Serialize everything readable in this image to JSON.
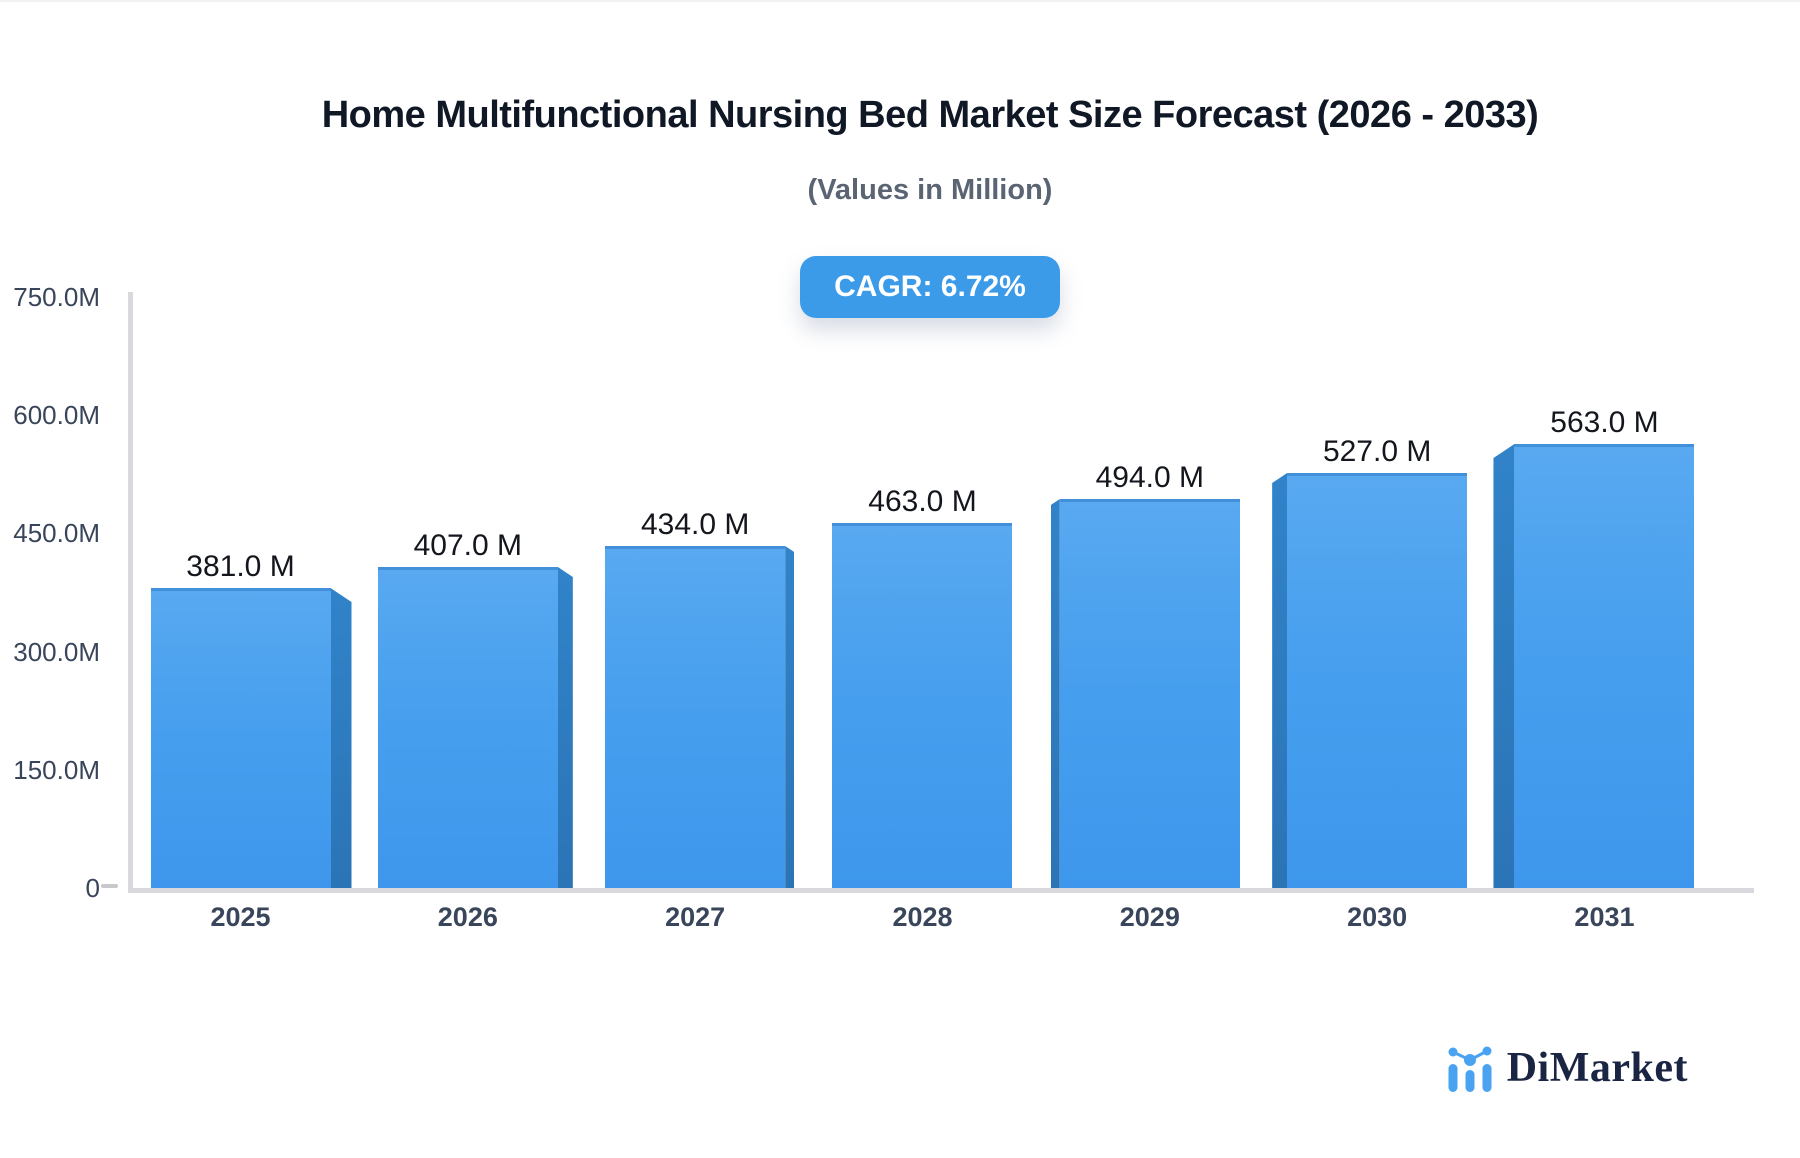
{
  "title": "Home Multifunctional Nursing Bed Market Size Forecast (2026 - 2033)",
  "subtitle": "(Values in Million)",
  "cagr": {
    "text": "CAGR: 6.72%",
    "background": "#3b9be9"
  },
  "brand": {
    "name": "DiMarket",
    "icon": "mini-bar-chart-icon",
    "icon_color": "#4aa3f0",
    "text_color": "#1a2443"
  },
  "chart_data": {
    "type": "bar",
    "title": "Home Multifunctional Nursing Bed Market Size Forecast (2026 - 2033)",
    "subtitle": "(Values in Million)",
    "unit": "Million",
    "categories": [
      "2025",
      "2026",
      "2027",
      "2028",
      "2029",
      "2030",
      "2031"
    ],
    "values": [
      381.0,
      407.0,
      434.0,
      463.0,
      494.0,
      527.0,
      563.0
    ],
    "value_labels": [
      "381.0 M",
      "407.0 M",
      "434.0 M",
      "463.0 M",
      "494.0 M",
      "527.0 M",
      "563.0 M"
    ],
    "y_ticks": [
      {
        "value": 750,
        "label": "750.0M"
      },
      {
        "value": 600,
        "label": "600.0M"
      },
      {
        "value": 450,
        "label": "450.0M"
      },
      {
        "value": 300,
        "label": "300.0M"
      },
      {
        "value": 150,
        "label": "150.0M"
      },
      {
        "value": 0,
        "label": "0"
      }
    ],
    "ylim": [
      0,
      750
    ],
    "xlabel": "",
    "ylabel": "",
    "grid": false,
    "legend": false,
    "annotations": [
      "CAGR: 6.72%"
    ],
    "colors": {
      "bar_top": "#58a9f0",
      "bar_bottom": "#3e97ec",
      "bar_side": "#2e7cc0",
      "bar_top_edge": "#4390da",
      "axis_line": "#d9d9dd",
      "axis_text": "#39455a",
      "value_text": "#13161c"
    }
  }
}
